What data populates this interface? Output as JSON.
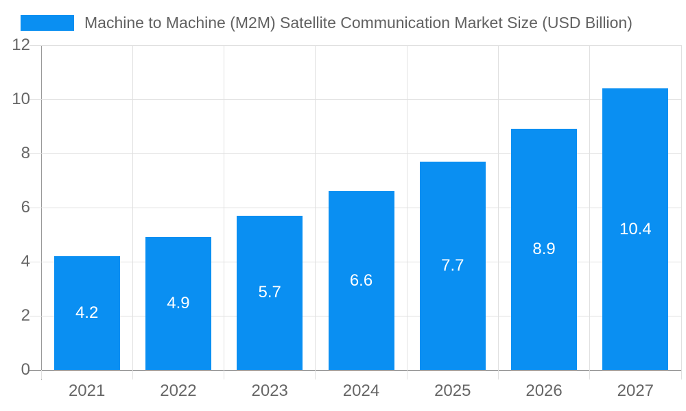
{
  "title": "Machine to Machine (M2M) Satellite Communication Market Size (USD Billion)",
  "colors": {
    "bar": "#0a8ff2",
    "grid": "#e0e0e0",
    "axis_line": "#999999",
    "baseline": "#6e6e6e",
    "axis_text": "#666666",
    "title_text": "#616161",
    "bar_label_text": "#ffffff",
    "background": "#ffffff"
  },
  "chart_data": {
    "type": "bar",
    "title": "Machine to Machine (M2M) Satellite Communication Market Size (USD Billion)",
    "categories": [
      "2021",
      "2022",
      "2023",
      "2024",
      "2025",
      "2026",
      "2027"
    ],
    "values": [
      4.2,
      4.9,
      5.7,
      6.6,
      7.7,
      8.9,
      10.4
    ],
    "bar_labels": [
      "4.2",
      "4.9",
      "5.7",
      "6.6",
      "7.7",
      "8.9",
      "10.4"
    ],
    "xlabel": "",
    "ylabel": "",
    "ylim": [
      0,
      12
    ],
    "yticks": [
      0,
      2,
      4,
      6,
      8,
      10,
      12
    ],
    "grid": true,
    "legend_position": "top-left",
    "bar_label_position": "inside-center"
  }
}
